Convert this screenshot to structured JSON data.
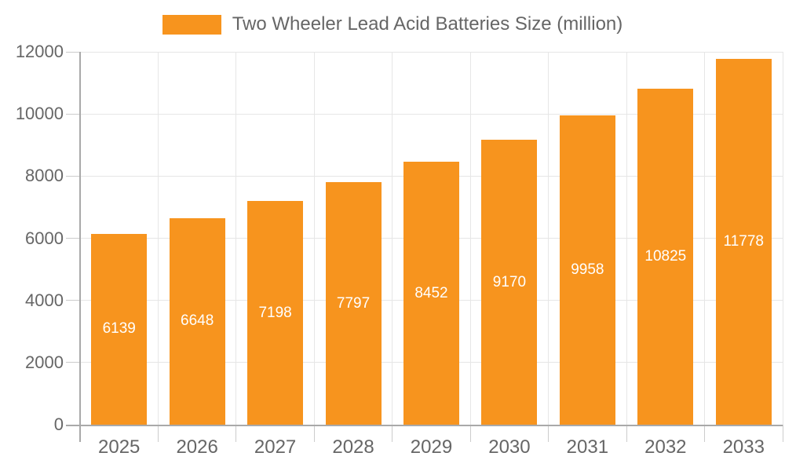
{
  "chart_data": {
    "type": "bar",
    "title": "Two Wheeler Lead Acid Batteries Size (million)",
    "categories": [
      "2025",
      "2026",
      "2027",
      "2028",
      "2029",
      "2030",
      "2031",
      "2032",
      "2033"
    ],
    "values": [
      6139,
      6648,
      7198,
      7797,
      8452,
      9170,
      9958,
      10825,
      11778
    ],
    "xlabel": "",
    "ylabel": "",
    "ylim": [
      0,
      12000
    ],
    "yticks": [
      0,
      2000,
      4000,
      6000,
      8000,
      10000,
      12000
    ],
    "grid": true,
    "legend_position": "top-center",
    "value_label_position": "inside-center",
    "colors": {
      "bar": "#F7941E",
      "grid": "#E6E6E6",
      "axis": "#A9A9A9",
      "tick": "#CCCCCC",
      "axis_text": "#666666",
      "legend_text": "#666666",
      "value_text": "#FFFFFF",
      "background": "#FFFFFF"
    }
  }
}
